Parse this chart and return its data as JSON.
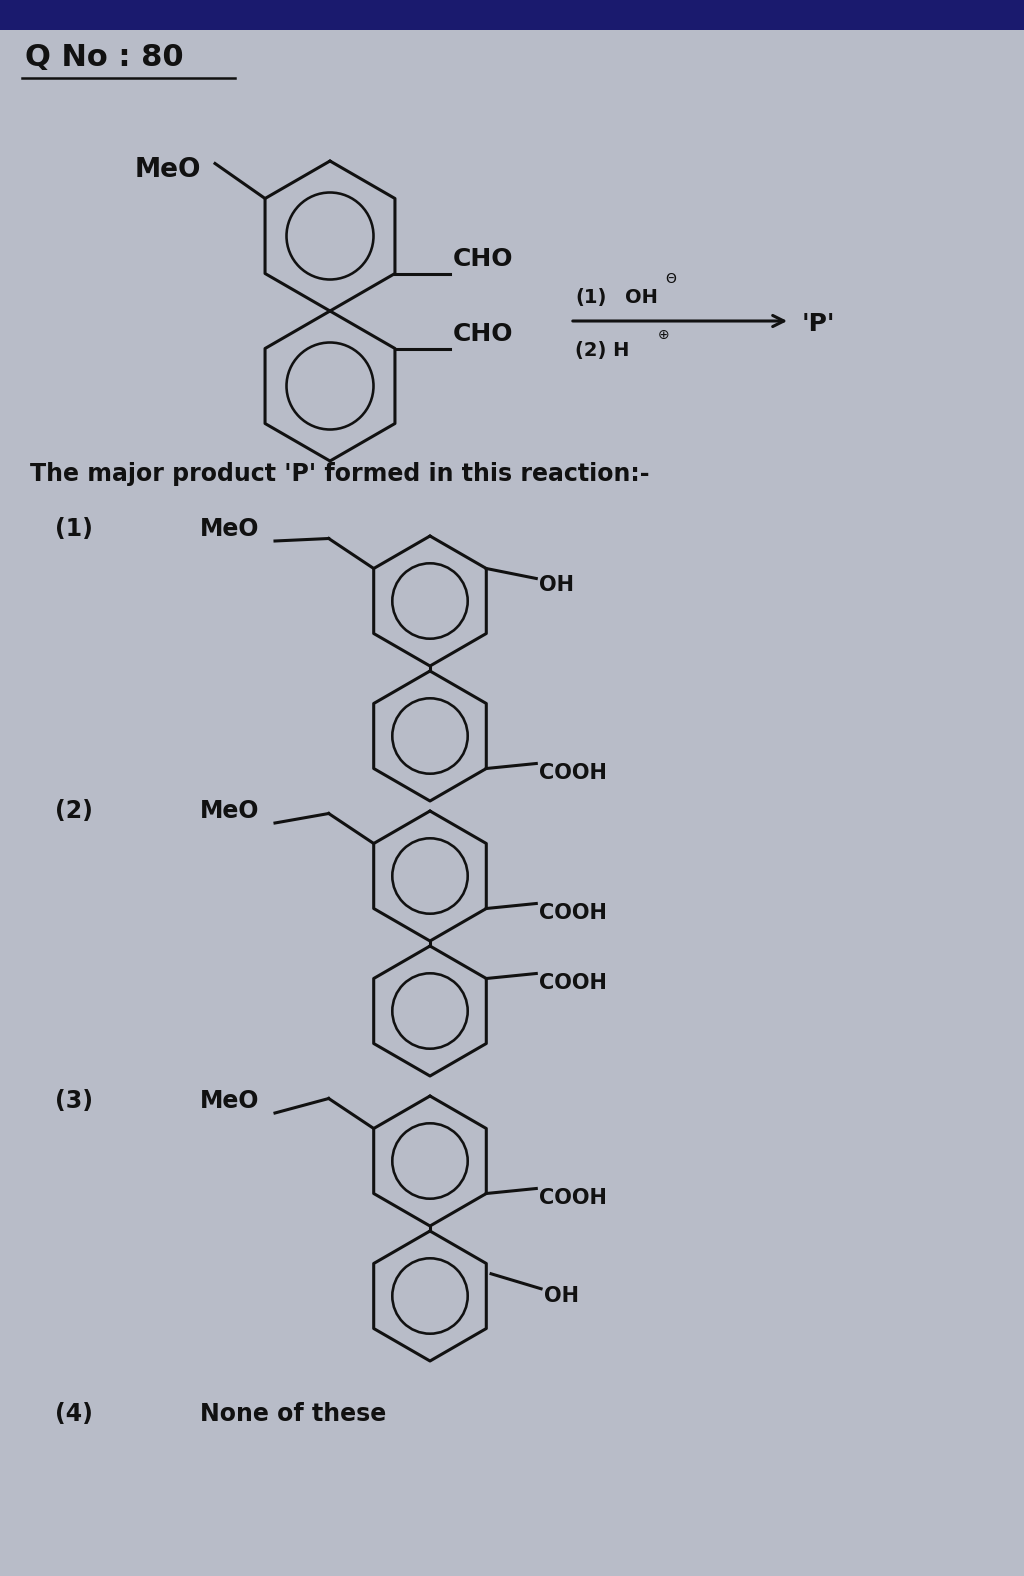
{
  "title": "Q No : 80",
  "background_color": "#b8bcc8",
  "header_bg": "#1a1a6e",
  "text_color": "#111111",
  "structure_color": "#111111",
  "question_text": "The major product 'P' formed in this reaction:-",
  "option4_text": "None of these",
  "figwidth": 10.24,
  "figheight": 15.76,
  "dpi": 100
}
